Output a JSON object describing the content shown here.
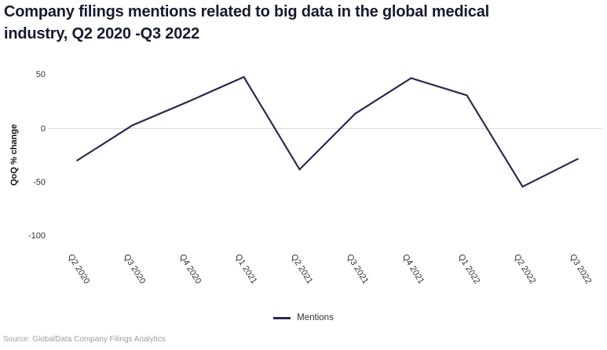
{
  "title": "Company filings mentions related to big data in the global medical industry, Q2 2020 -Q3 2022",
  "source": "Source: GlobalData Company Filings Analytics",
  "legend": {
    "label": "Mentions"
  },
  "colors": {
    "line": "#2d2a4f",
    "title_text": "#171b30",
    "grid": "#d9d9d9",
    "axis_text": "#333333",
    "source_text": "#9e9e9e"
  },
  "chart_data": {
    "type": "line",
    "title": "Company filings mentions related to big data in the global medical industry, Q2 2020 -Q3 2022",
    "xlabel": "",
    "ylabel": "QoQ % change",
    "categories": [
      "Q2 2020",
      "Q3 2020",
      "Q4 2020",
      "Q1 2021",
      "Q2 2021",
      "Q3 2021",
      "Q4 2021",
      "Q1 2022",
      "Q2 2022",
      "Q3 2022"
    ],
    "series": [
      {
        "name": "Mentions",
        "values": [
          -30,
          3,
          25,
          48,
          -38,
          14,
          47,
          31,
          -54,
          -28
        ]
      }
    ],
    "yticks": [
      50,
      0,
      -50,
      -100
    ],
    "ylim": [
      -107,
      65
    ],
    "grid": "zero-line-only",
    "legend_position": "bottom-center",
    "x_label_rotation_deg": 58
  }
}
